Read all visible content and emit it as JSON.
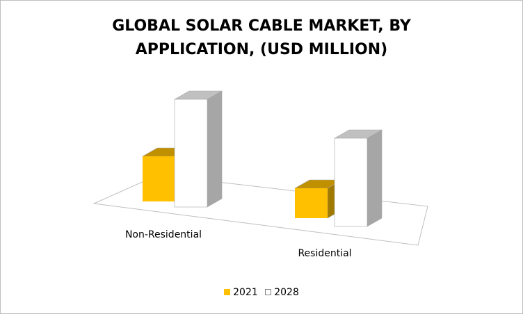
{
  "chart_data": {
    "type": "bar",
    "title": "GLOBAL SOLAR CABLE MARKET, BY APPLICATION, (USD MILLION)",
    "title_lines": [
      "GLOBAL SOLAR CABLE MARKET, BY",
      "APPLICATION, (USD MILLION)"
    ],
    "categories": [
      "Non-Residential",
      "Residential"
    ],
    "series": [
      {
        "name": "2021",
        "values": [
          65,
          43
        ],
        "color": "#FFC000",
        "top_color": "#C09000"
      },
      {
        "name": "2028",
        "values": [
          155,
          127
        ],
        "color": "#FFFFFF",
        "top_color": "#C0C0C0"
      }
    ],
    "ylim": [
      0,
      160
    ],
    "grid": false,
    "legend_position": "bottom"
  }
}
